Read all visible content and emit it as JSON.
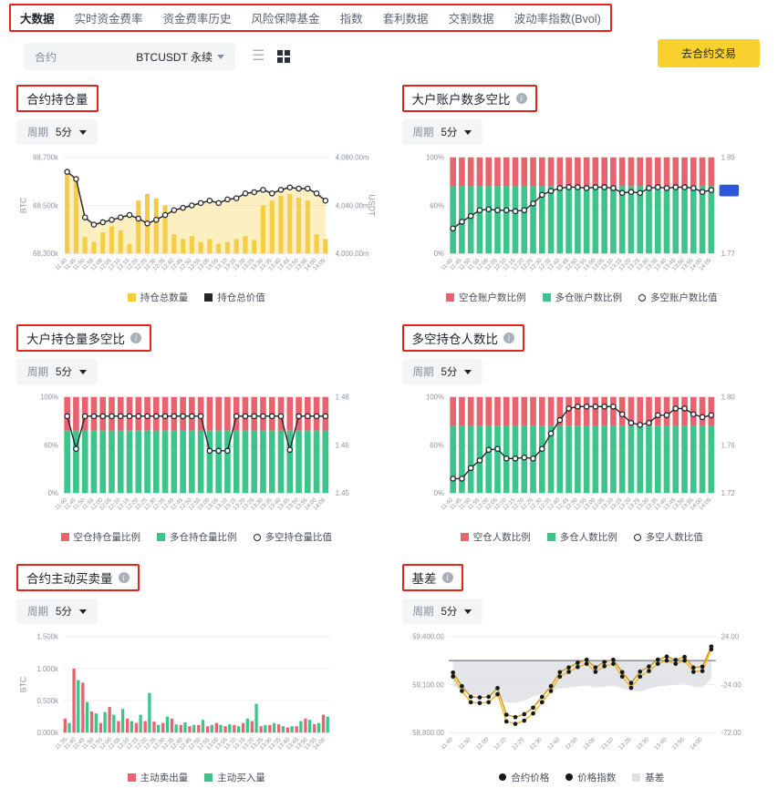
{
  "nav": {
    "tabs": [
      {
        "label": "大数据",
        "active": true
      },
      {
        "label": "实时资金费率",
        "active": false
      },
      {
        "label": "资金费率历史",
        "active": false
      },
      {
        "label": "风险保障基金",
        "active": false
      },
      {
        "label": "指数",
        "active": false
      },
      {
        "label": "套利数据",
        "active": false
      },
      {
        "label": "交割数据",
        "active": false
      },
      {
        "label": "波动率指数(Bvol)",
        "active": false
      }
    ]
  },
  "toolbar": {
    "contract_label": "合约",
    "contract_value": "BTCUSDT 永续",
    "list_view_icon": "☰",
    "trade_button": "去合约交易"
  },
  "period": {
    "label": "周期",
    "value": "5分"
  },
  "chart_data": [
    {
      "kind": "oi",
      "type": "bar+line",
      "title": "合约持仓量",
      "has_info": false,
      "left_axis_name": "BTC",
      "right_axis_name": "USDT",
      "left_ticks": [
        "68,700k",
        "68,500k",
        "68,300k"
      ],
      "right_ticks": [
        "4,080.00m",
        "4,040.00m",
        "4,000.00m"
      ],
      "ylim": [
        68300,
        68700
      ],
      "ylim_right": [
        4000,
        4080
      ],
      "categories": [
        "11:40",
        "11:45",
        "11:50",
        "11:55",
        "12:00",
        "12:05",
        "12:10",
        "12:15",
        "12:20",
        "12:25",
        "12:30",
        "12:35",
        "12:40",
        "12:45",
        "12:50",
        "12:55",
        "13:00",
        "13:05",
        "13:10",
        "13:15",
        "13:20",
        "13:25",
        "13:30",
        "13:35",
        "13:40",
        "13:45",
        "13:50",
        "13:55",
        "14:00",
        "14:05"
      ],
      "series": [
        {
          "name": "持仓总数量",
          "type": "bar",
          "color": "#f4cb42",
          "values": [
            68644,
            68620,
            68368,
            68348,
            68388,
            68412,
            68396,
            68340,
            68520,
            68548,
            68528,
            68500,
            68380,
            68360,
            68372,
            68348,
            68360,
            68340,
            68348,
            68360,
            68372,
            68356,
            68500,
            68520,
            68540,
            68548,
            68532,
            68520,
            68380,
            68360
          ]
        },
        {
          "name": "持仓总价值",
          "type": "line",
          "color": "#23262b",
          "values": [
            4068,
            4062,
            4030,
            4024,
            4026,
            4028,
            4030,
            4032,
            4029,
            4025,
            4028,
            4032,
            4036,
            4038,
            4040,
            4042,
            4044,
            4042,
            4045,
            4046,
            4050,
            4051,
            4053,
            4050,
            4053,
            4055,
            4054,
            4054,
            4050,
            4044
          ]
        }
      ],
      "legend": [
        {
          "label": "持仓总数量",
          "marker": "sq",
          "color": "#f4cb42"
        },
        {
          "label": "持仓总价值",
          "marker": "sq",
          "color": "#23262b"
        }
      ]
    },
    {
      "kind": "ratio",
      "type": "bar",
      "title": "大户账户数多空比",
      "has_info": true,
      "left_ticks": [
        "100%",
        "60%",
        "0%"
      ],
      "right_ticks": [
        "1.89",
        "1.77"
      ],
      "badge_color": "#2b57d8",
      "categories": [
        "11:40",
        "11:45",
        "11:50",
        "11:55",
        "12:00",
        "12:05",
        "12:10",
        "12:15",
        "12:20",
        "12:25",
        "12:30",
        "12:35",
        "12:40",
        "12:45",
        "12:50",
        "12:55",
        "13:00",
        "13:05",
        "13:10",
        "13:15",
        "13:20",
        "13:25",
        "13:30",
        "13:35",
        "13:40",
        "13:45",
        "13:50",
        "13:55",
        "14:00",
        "14:05"
      ],
      "series": [
        {
          "name": "空仓账户数比例",
          "role": "red",
          "color": "#e9636e",
          "values": [
            30,
            30,
            30,
            30,
            30,
            30,
            30,
            30,
            30,
            30,
            30,
            30,
            30,
            30,
            30,
            30,
            30,
            30,
            30,
            30,
            30,
            30,
            30,
            30,
            30,
            30,
            30,
            30,
            30,
            30
          ]
        },
        {
          "name": "多仓账户数比例",
          "role": "green",
          "color": "#3ec48a",
          "values": [
            70,
            70,
            70,
            70,
            70,
            70,
            70,
            70,
            70,
            70,
            70,
            70,
            70,
            70,
            70,
            70,
            70,
            70,
            70,
            70,
            70,
            70,
            70,
            70,
            70,
            70,
            70,
            70,
            70,
            70
          ]
        },
        {
          "name": "多空账户数比值",
          "role": "line",
          "color": "#1e2329",
          "values": [
            26,
            33,
            39,
            45,
            46,
            45,
            45,
            44,
            45,
            52,
            61,
            65,
            68,
            69,
            69,
            68,
            69,
            69,
            68,
            63,
            64,
            63,
            68,
            69,
            68,
            69,
            69,
            68,
            64,
            66
          ]
        }
      ],
      "legend": [
        {
          "label": "空仓账户数比例",
          "marker": "sq",
          "color": "#e9636e"
        },
        {
          "label": "多仓账户数比例",
          "marker": "sq",
          "color": "#3ec48a"
        },
        {
          "label": "多空账户数比值",
          "marker": "circ",
          "color": "#1e2329"
        }
      ]
    },
    {
      "kind": "ratio",
      "type": "bar",
      "title": "大户持仓量多空比",
      "has_info": true,
      "left_ticks": [
        "100%",
        "60%",
        "0%"
      ],
      "right_ticks": [
        "1.48",
        "1.46",
        "1.45"
      ],
      "categories": [
        "11:40",
        "11:45",
        "11:50",
        "11:55",
        "12:00",
        "12:05",
        "12:10",
        "12:15",
        "12:20",
        "12:25",
        "12:30",
        "12:35",
        "12:40",
        "12:45",
        "12:50",
        "12:55",
        "13:00",
        "13:05",
        "13:10",
        "13:15",
        "13:20",
        "13:25",
        "13:30",
        "13:35",
        "13:40",
        "13:45",
        "13:50",
        "13:55",
        "14:00",
        "14:05"
      ],
      "series": [
        {
          "name": "空仓持仓量比例",
          "role": "red",
          "color": "#e9636e",
          "values": [
            35,
            35,
            35,
            35,
            35,
            35,
            35,
            35,
            35,
            35,
            35,
            35,
            35,
            35,
            35,
            35,
            35,
            35,
            35,
            35,
            35,
            35,
            35,
            35,
            35,
            35,
            35,
            35,
            35,
            35
          ]
        },
        {
          "name": "多仓持仓量比例",
          "role": "green",
          "color": "#3ec48a",
          "values": [
            65,
            65,
            65,
            65,
            65,
            65,
            65,
            65,
            65,
            65,
            65,
            65,
            65,
            65,
            65,
            65,
            65,
            65,
            65,
            65,
            65,
            65,
            65,
            65,
            65,
            65,
            65,
            65,
            65,
            65
          ]
        },
        {
          "name": "多空持仓量比值",
          "role": "line",
          "color": "#1e2329",
          "values": [
            80,
            46,
            80,
            80,
            80,
            80,
            80,
            80,
            80,
            80,
            80,
            80,
            80,
            80,
            80,
            80,
            44,
            44,
            44,
            80,
            80,
            80,
            80,
            80,
            80,
            45,
            80,
            80,
            80,
            80
          ]
        }
      ],
      "legend": [
        {
          "label": "空仓持仓量比例",
          "marker": "sq",
          "color": "#e9636e"
        },
        {
          "label": "多仓持仓量比例",
          "marker": "sq",
          "color": "#3ec48a"
        },
        {
          "label": "多空持仓量比值",
          "marker": "circ",
          "color": "#1e2329"
        }
      ]
    },
    {
      "kind": "ratio",
      "type": "bar",
      "title": "多空持仓人数比",
      "has_info": true,
      "left_ticks": [
        "100%",
        "60%",
        "0%"
      ],
      "right_ticks": [
        "1.80",
        "1.76",
        "1.72"
      ],
      "categories": [
        "11:40",
        "11:45",
        "11:50",
        "11:55",
        "12:00",
        "12:05",
        "12:10",
        "12:15",
        "12:20",
        "12:25",
        "12:30",
        "12:35",
        "12:40",
        "12:45",
        "12:50",
        "12:55",
        "13:00",
        "13:05",
        "13:10",
        "13:15",
        "13:20",
        "13:25",
        "13:30",
        "13:35",
        "13:40",
        "13:45",
        "13:50",
        "13:55",
        "14:00",
        "14:05"
      ],
      "series": [
        {
          "name": "空仓人数比例",
          "role": "red",
          "color": "#e9636e",
          "values": [
            30,
            30,
            30,
            30,
            30,
            30,
            30,
            30,
            30,
            30,
            30,
            30,
            30,
            30,
            30,
            30,
            30,
            30,
            30,
            30,
            30,
            30,
            30,
            30,
            30,
            30,
            30,
            30,
            30,
            30
          ]
        },
        {
          "name": "多仓人数比例",
          "role": "green",
          "color": "#3ec48a",
          "values": [
            70,
            70,
            70,
            70,
            70,
            70,
            70,
            70,
            70,
            70,
            70,
            70,
            70,
            70,
            70,
            70,
            70,
            70,
            70,
            70,
            70,
            70,
            70,
            70,
            70,
            70,
            70,
            70,
            70,
            70
          ]
        },
        {
          "name": "多空人数比值",
          "role": "line",
          "color": "#1e2329",
          "values": [
            15,
            15,
            26,
            34,
            45,
            46,
            36,
            36,
            37,
            36,
            46,
            62,
            76,
            88,
            90,
            90,
            90,
            90,
            90,
            82,
            73,
            71,
            73,
            81,
            81,
            88,
            88,
            82,
            79,
            81
          ]
        }
      ],
      "legend": [
        {
          "label": "空仓人数比例",
          "marker": "sq",
          "color": "#e9636e"
        },
        {
          "label": "多仓人数比例",
          "marker": "sq",
          "color": "#3ec48a"
        },
        {
          "label": "多空人数比值",
          "marker": "circ",
          "color": "#1e2329"
        }
      ]
    },
    {
      "kind": "taker",
      "type": "bar",
      "title": "合约主动买卖量",
      "has_info": true,
      "left_axis_name": "BTC",
      "left_ticks": [
        "1.500k",
        "1.000k",
        "0.500k",
        "0.000k"
      ],
      "right_ticks": [],
      "ylim": [
        0,
        1.5
      ],
      "categories": [
        "11:35",
        "11:40",
        "11:45",
        "11:50",
        "11:55",
        "12:00",
        "12:05",
        "12:10",
        "12:15",
        "12:20",
        "12:25",
        "12:30",
        "12:35",
        "12:40",
        "12:45",
        "12:50",
        "12:55",
        "13:00",
        "13:05",
        "13:10",
        "13:15",
        "13:20",
        "13:25",
        "13:30",
        "13:35",
        "13:40",
        "13:45",
        "13:50",
        "13:55",
        "14:00"
      ],
      "series": [
        {
          "name": "主动卖出量",
          "color": "#e9636e",
          "values": [
            0.22,
            1.0,
            0.78,
            0.33,
            0.15,
            0.4,
            0.18,
            0.22,
            0.15,
            0.18,
            0.17,
            0.15,
            0.22,
            0.12,
            0.1,
            0.12,
            0.1,
            0.15,
            0.1,
            0.12,
            0.15,
            0.18,
            0.1,
            0.12,
            0.13,
            0.08,
            0.1,
            0.22,
            0.13,
            0.28
          ]
        },
        {
          "name": "主动买入量",
          "color": "#3ec48a",
          "values": [
            0.15,
            0.82,
            0.48,
            0.3,
            0.32,
            0.28,
            0.37,
            0.18,
            0.28,
            0.62,
            0.12,
            0.25,
            0.13,
            0.16,
            0.12,
            0.2,
            0.12,
            0.12,
            0.13,
            0.1,
            0.22,
            0.45,
            0.12,
            0.15,
            0.1,
            0.1,
            0.18,
            0.2,
            0.15,
            0.25
          ]
        }
      ],
      "legend": [
        {
          "label": "主动卖出量",
          "marker": "sq",
          "color": "#e9636e"
        },
        {
          "label": "主动买入量",
          "marker": "sq",
          "color": "#3ec48a"
        }
      ]
    },
    {
      "kind": "basis",
      "type": "line+area",
      "title": "基差",
      "has_info": true,
      "left_ticks": [
        "59,400.00",
        "59,100.00",
        "58,800.00"
      ],
      "right_ticks": [
        "24.00",
        "-24.00",
        "-72.00"
      ],
      "ylim": [
        58800,
        59400
      ],
      "ylim_right": [
        -72,
        24
      ],
      "x_labels": [
        "11:40",
        "11:50",
        "12:00",
        "12:10",
        "12:20",
        "12:30",
        "12:40",
        "12:50",
        "13:00",
        "13:10",
        "13:20",
        "13:30",
        "13:40",
        "13:50",
        "14:00"
      ],
      "series": [
        {
          "name": "合约价格",
          "color": "#edb829",
          "values": [
            59150,
            59060,
            58990,
            58985,
            58990,
            59040,
            58870,
            58855,
            58875,
            58920,
            58990,
            59060,
            59150,
            59180,
            59210,
            59230,
            59180,
            59215,
            59230,
            59150,
            59080,
            59150,
            59185,
            59230,
            59250,
            59230,
            59250,
            59180,
            59185,
            59320
          ]
        },
        {
          "name": "价格指数",
          "color": "#cf9d14",
          "values": [
            59175,
            59090,
            59024,
            59020,
            59024,
            59078,
            58912,
            58897,
            58915,
            58956,
            59023,
            59090,
            59178,
            59207,
            59236,
            59255,
            59207,
            59241,
            59255,
            59178,
            59110,
            59181,
            59213,
            59256,
            59275,
            59254,
            59273,
            59206,
            59212,
            59338
          ]
        },
        {
          "name": "基差",
          "color": "#dddfe2",
          "values": [
            -25,
            -30,
            -34,
            -35,
            -34,
            -38,
            -42,
            -42,
            -40,
            -36,
            -33,
            -30,
            -28,
            -27,
            -26,
            -25,
            -27,
            -26,
            -25,
            -28,
            -30,
            -31,
            -28,
            -26,
            -25,
            -24,
            -23,
            -26,
            -27,
            -18
          ]
        }
      ],
      "legend": [
        {
          "label": "合约价格",
          "marker": "dot",
          "color": "#15181c"
        },
        {
          "label": "价格指数",
          "marker": "dot",
          "color": "#15181c"
        },
        {
          "label": "基差",
          "marker": "sq",
          "color": "#dddfe2"
        }
      ]
    }
  ]
}
